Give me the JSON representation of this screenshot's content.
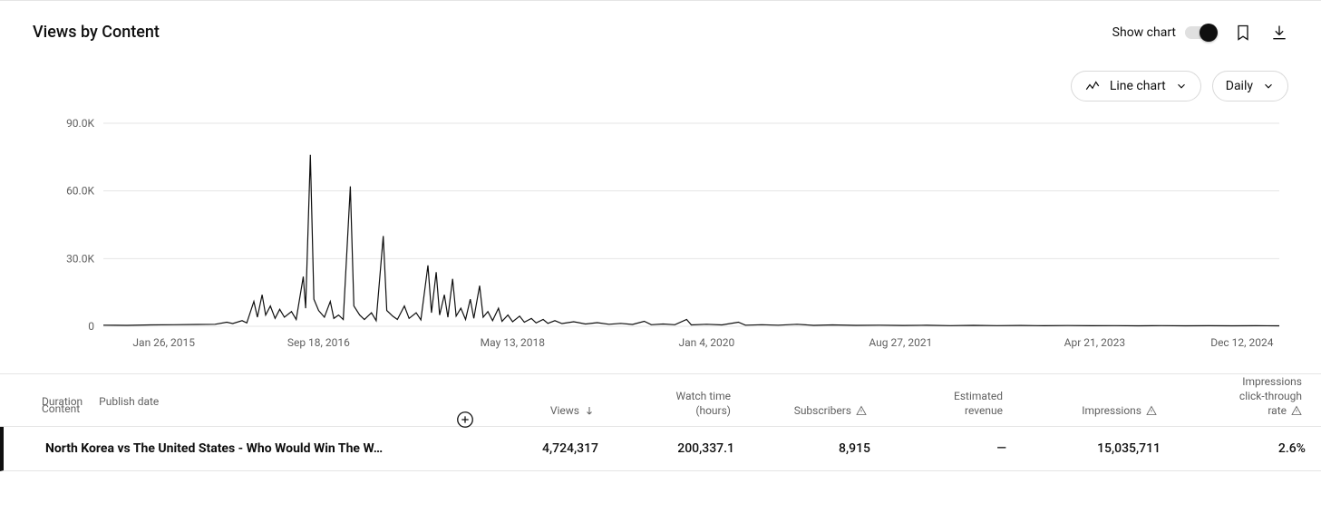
{
  "header": {
    "title": "Views by Content",
    "show_chart_label": "Show chart",
    "show_chart_on": true
  },
  "controls": {
    "chart_type_label": "Line chart",
    "granularity_label": "Daily"
  },
  "chart": {
    "type": "line",
    "line_color": "#0f0f0f",
    "line_width": 1.2,
    "background_color": "#ffffff",
    "grid_color": "#e5e5e5",
    "axis_text_color": "#606060",
    "axis_fontsize": 12,
    "y_axis": {
      "min": 0,
      "max": 90000,
      "ticks": [
        0,
        30000,
        60000,
        90000
      ],
      "tick_labels": [
        "0",
        "30.0K",
        "60.0K",
        "90.0K"
      ]
    },
    "x_axis": {
      "tick_positions": [
        0.025,
        0.183,
        0.348,
        0.513,
        0.678,
        0.843,
        0.995
      ],
      "tick_labels": [
        "Jan 26, 2015",
        "Sep 18, 2016",
        "May 13, 2018",
        "Jan 4, 2020",
        "Aug 27, 2021",
        "Apr 21, 2023",
        "Dec 12, 2024"
      ]
    },
    "series": [
      {
        "x": 0.0,
        "y": 500
      },
      {
        "x": 0.02,
        "y": 400
      },
      {
        "x": 0.04,
        "y": 600
      },
      {
        "x": 0.06,
        "y": 700
      },
      {
        "x": 0.08,
        "y": 800
      },
      {
        "x": 0.095,
        "y": 900
      },
      {
        "x": 0.105,
        "y": 1800
      },
      {
        "x": 0.11,
        "y": 1200
      },
      {
        "x": 0.118,
        "y": 2500
      },
      {
        "x": 0.122,
        "y": 1500
      },
      {
        "x": 0.128,
        "y": 11000
      },
      {
        "x": 0.131,
        "y": 4000
      },
      {
        "x": 0.135,
        "y": 14000
      },
      {
        "x": 0.138,
        "y": 5000
      },
      {
        "x": 0.142,
        "y": 9000
      },
      {
        "x": 0.146,
        "y": 3500
      },
      {
        "x": 0.15,
        "y": 7500
      },
      {
        "x": 0.154,
        "y": 4000
      },
      {
        "x": 0.16,
        "y": 6500
      },
      {
        "x": 0.164,
        "y": 3000
      },
      {
        "x": 0.17,
        "y": 22000
      },
      {
        "x": 0.172,
        "y": 8000
      },
      {
        "x": 0.176,
        "y": 76000
      },
      {
        "x": 0.179,
        "y": 12000
      },
      {
        "x": 0.183,
        "y": 7000
      },
      {
        "x": 0.188,
        "y": 4000
      },
      {
        "x": 0.193,
        "y": 11000
      },
      {
        "x": 0.196,
        "y": 3500
      },
      {
        "x": 0.2,
        "y": 5000
      },
      {
        "x": 0.204,
        "y": 3000
      },
      {
        "x": 0.21,
        "y": 62000
      },
      {
        "x": 0.213,
        "y": 9000
      },
      {
        "x": 0.218,
        "y": 5000
      },
      {
        "x": 0.222,
        "y": 3000
      },
      {
        "x": 0.228,
        "y": 6000
      },
      {
        "x": 0.232,
        "y": 2500
      },
      {
        "x": 0.238,
        "y": 40000
      },
      {
        "x": 0.241,
        "y": 7000
      },
      {
        "x": 0.246,
        "y": 4500
      },
      {
        "x": 0.25,
        "y": 3000
      },
      {
        "x": 0.256,
        "y": 9000
      },
      {
        "x": 0.26,
        "y": 3500
      },
      {
        "x": 0.266,
        "y": 6000
      },
      {
        "x": 0.27,
        "y": 2800
      },
      {
        "x": 0.276,
        "y": 27000
      },
      {
        "x": 0.279,
        "y": 6000
      },
      {
        "x": 0.283,
        "y": 24000
      },
      {
        "x": 0.286,
        "y": 5000
      },
      {
        "x": 0.29,
        "y": 14000
      },
      {
        "x": 0.293,
        "y": 4000
      },
      {
        "x": 0.297,
        "y": 21000
      },
      {
        "x": 0.3,
        "y": 4500
      },
      {
        "x": 0.304,
        "y": 8000
      },
      {
        "x": 0.308,
        "y": 3000
      },
      {
        "x": 0.312,
        "y": 12000
      },
      {
        "x": 0.315,
        "y": 3500
      },
      {
        "x": 0.32,
        "y": 18000
      },
      {
        "x": 0.323,
        "y": 4000
      },
      {
        "x": 0.327,
        "y": 6500
      },
      {
        "x": 0.331,
        "y": 2500
      },
      {
        "x": 0.336,
        "y": 8000
      },
      {
        "x": 0.339,
        "y": 2200
      },
      {
        "x": 0.344,
        "y": 5000
      },
      {
        "x": 0.348,
        "y": 2000
      },
      {
        "x": 0.354,
        "y": 4500
      },
      {
        "x": 0.358,
        "y": 1800
      },
      {
        "x": 0.364,
        "y": 3500
      },
      {
        "x": 0.368,
        "y": 1500
      },
      {
        "x": 0.374,
        "y": 3000
      },
      {
        "x": 0.378,
        "y": 1300
      },
      {
        "x": 0.384,
        "y": 2500
      },
      {
        "x": 0.39,
        "y": 1200
      },
      {
        "x": 0.4,
        "y": 2000
      },
      {
        "x": 0.41,
        "y": 1000
      },
      {
        "x": 0.42,
        "y": 1600
      },
      {
        "x": 0.43,
        "y": 900
      },
      {
        "x": 0.44,
        "y": 1300
      },
      {
        "x": 0.45,
        "y": 800
      },
      {
        "x": 0.46,
        "y": 2200
      },
      {
        "x": 0.466,
        "y": 700
      },
      {
        "x": 0.476,
        "y": 1000
      },
      {
        "x": 0.486,
        "y": 700
      },
      {
        "x": 0.496,
        "y": 3000
      },
      {
        "x": 0.5,
        "y": 600
      },
      {
        "x": 0.513,
        "y": 900
      },
      {
        "x": 0.526,
        "y": 600
      },
      {
        "x": 0.54,
        "y": 1800
      },
      {
        "x": 0.546,
        "y": 500
      },
      {
        "x": 0.56,
        "y": 700
      },
      {
        "x": 0.574,
        "y": 500
      },
      {
        "x": 0.59,
        "y": 900
      },
      {
        "x": 0.604,
        "y": 400
      },
      {
        "x": 0.62,
        "y": 600
      },
      {
        "x": 0.64,
        "y": 400
      },
      {
        "x": 0.66,
        "y": 500
      },
      {
        "x": 0.68,
        "y": 350
      },
      {
        "x": 0.7,
        "y": 450
      },
      {
        "x": 0.72,
        "y": 300
      },
      {
        "x": 0.74,
        "y": 400
      },
      {
        "x": 0.76,
        "y": 280
      },
      {
        "x": 0.78,
        "y": 350
      },
      {
        "x": 0.8,
        "y": 260
      },
      {
        "x": 0.82,
        "y": 320
      },
      {
        "x": 0.84,
        "y": 240
      },
      {
        "x": 0.86,
        "y": 300
      },
      {
        "x": 0.88,
        "y": 220
      },
      {
        "x": 0.9,
        "y": 280
      },
      {
        "x": 0.92,
        "y": 210
      },
      {
        "x": 0.94,
        "y": 260
      },
      {
        "x": 0.96,
        "y": 200
      },
      {
        "x": 0.98,
        "y": 240
      },
      {
        "x": 1.0,
        "y": 200
      }
    ]
  },
  "table": {
    "columns": {
      "content": "Content",
      "duration": "Duration",
      "publish_date": "Publish date",
      "views": "Views",
      "watch_time_l1": "Watch time",
      "watch_time_l2": "(hours)",
      "subscribers": "Subscribers",
      "est_rev_l1": "Estimated",
      "est_rev_l2": "revenue",
      "impressions": "Impressions",
      "ictr_l1": "Impressions",
      "ictr_l2": "click-through",
      "ictr_l3": "rate"
    },
    "row": {
      "title": "North Korea vs The United States - Who Would Win The W…",
      "views": "4,724,317",
      "watch_time": "200,337.1",
      "subscribers": "8,915",
      "est_revenue": "—",
      "impressions": "15,035,711",
      "ictr": "2.6%"
    }
  },
  "colors": {
    "text_primary": "#0f0f0f",
    "text_secondary": "#606060",
    "border": "#e5e5e5"
  }
}
